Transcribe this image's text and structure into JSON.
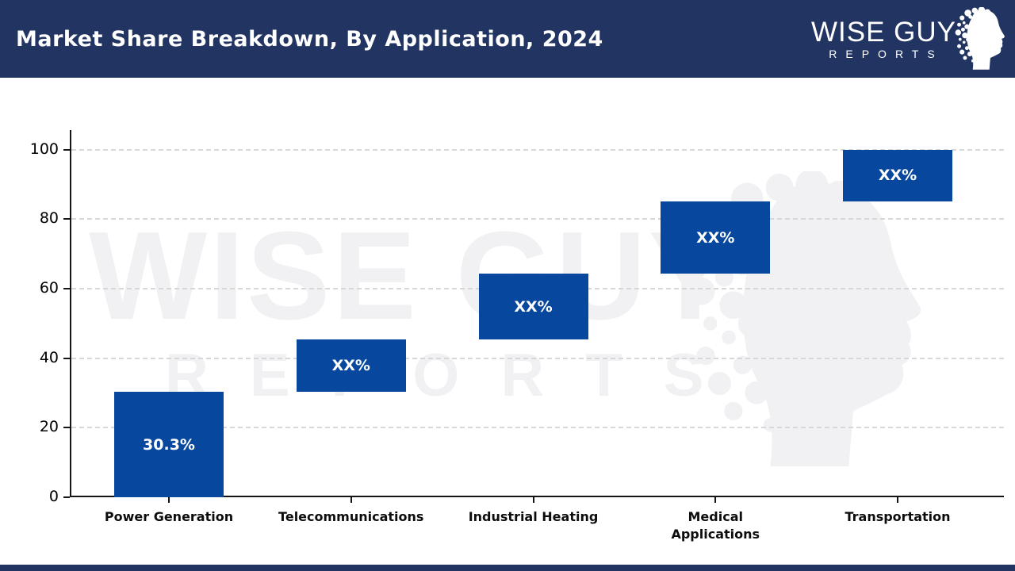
{
  "header": {
    "title": "Market Share Breakdown, By Application, 2024",
    "logo": {
      "line1": "WISE GUY",
      "line2": "REPORTS"
    }
  },
  "watermark": {
    "line1": "WISE GUY",
    "line2": "REPORTS"
  },
  "chart_data": {
    "type": "bar",
    "variant": "waterfall",
    "title": "Market Share Breakdown, By Application, 2024",
    "categories": [
      "Power Generation",
      "Telecommunications",
      "Industrial Heating",
      "Medical\nApplications",
      "Transportation"
    ],
    "segments": [
      {
        "category": "Power Generation",
        "start": 0,
        "end": 30.3,
        "label": "30.3%"
      },
      {
        "category": "Telecommunications",
        "start": 30.3,
        "end": 45.3,
        "label": "XX%"
      },
      {
        "category": "Industrial Heating",
        "start": 45.3,
        "end": 64.3,
        "label": "XX%"
      },
      {
        "category": "Medical Applications",
        "start": 64.3,
        "end": 85.0,
        "label": "XX%"
      },
      {
        "category": "Transportation",
        "start": 85.0,
        "end": 100.0,
        "label": "XX%"
      }
    ],
    "xlabel": "",
    "ylabel": "",
    "yticks": [
      0,
      20,
      40,
      60,
      80,
      100
    ],
    "ylim": [
      0,
      105.5
    ],
    "grid": "dashed-horizontal",
    "legend": "none",
    "colors": {
      "bar": "#08479e",
      "bar_label": "#ffffff",
      "header_bg": "#213462",
      "axis": "#151515",
      "gridline": "#d7d7d7",
      "watermark": "#f1f1f4"
    }
  }
}
